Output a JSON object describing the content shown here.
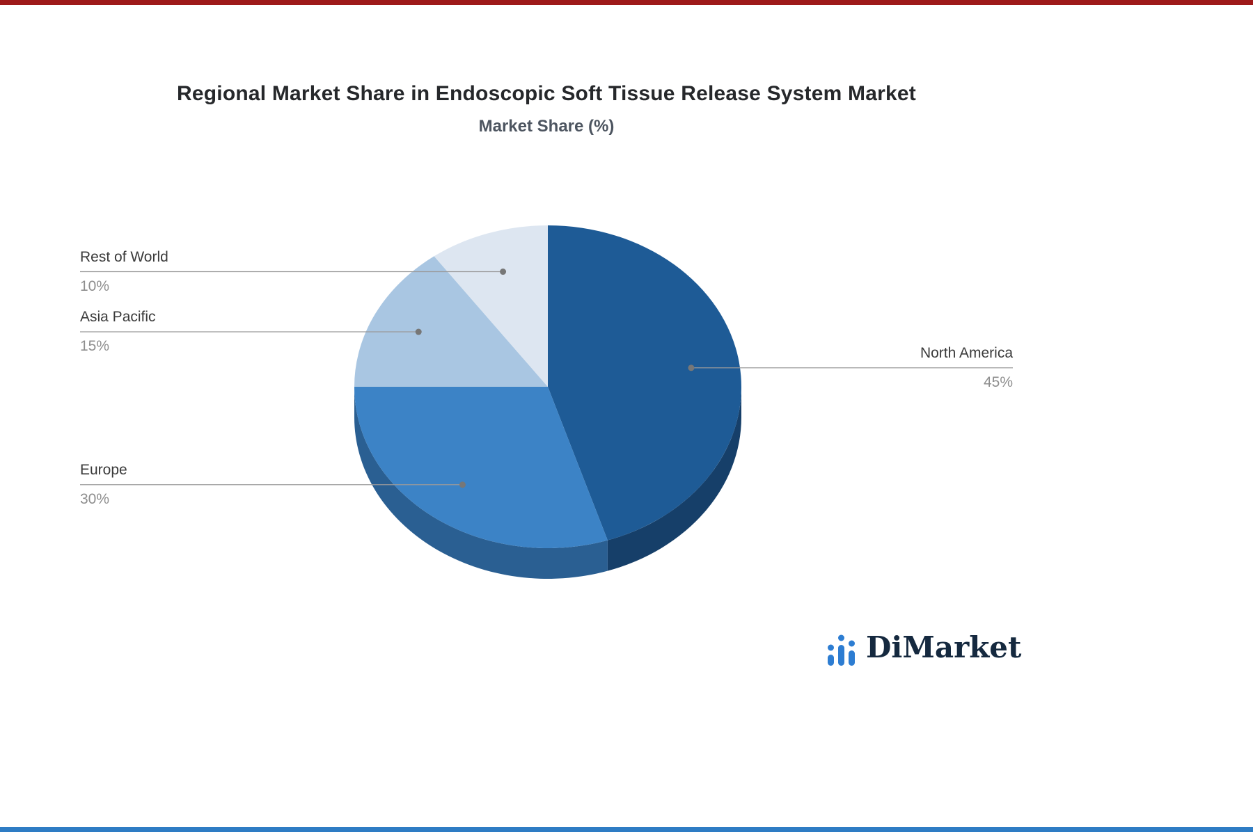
{
  "page": {
    "title": "Regional Market Share in Endoscopic Soft Tissue Release System Market",
    "subtitle": "Market Share (%)"
  },
  "chart_data": {
    "type": "pie",
    "title": "Regional Market Share in Endoscopic Soft Tissue Release System Market",
    "subtitle": "Market Share (%)",
    "unit": "%",
    "direction": "clockwise",
    "start_angle_deg": 0,
    "effect": "3d-depth",
    "legend_position": "none",
    "labels": "leader-lines",
    "slices": [
      {
        "label": "North America",
        "value": 45,
        "color": "#1e5b96",
        "side_color": "#163f69"
      },
      {
        "label": "Europe",
        "value": 30,
        "color": "#3c83c6",
        "side_color": "#2a5f92"
      },
      {
        "label": "Asia Pacific",
        "value": 15,
        "color": "#a9c6e2",
        "side_color": "#7e96ad"
      },
      {
        "label": "Rest of World",
        "value": 10,
        "color": "#dde6f1",
        "side_color": "#a8b3bf"
      }
    ],
    "leader_line_color": "#9a9a9a",
    "leader_dot_color": "#777777"
  },
  "branding": {
    "logo_text": "DiMarket",
    "logo_icon": "bar-chart-icon",
    "logo_text_color": "#15293f",
    "logo_icon_color": "#2d7dd2"
  },
  "accents": {
    "top_bar_color": "#9e1a1a",
    "bottom_bar_color": "#2e7cc4"
  }
}
